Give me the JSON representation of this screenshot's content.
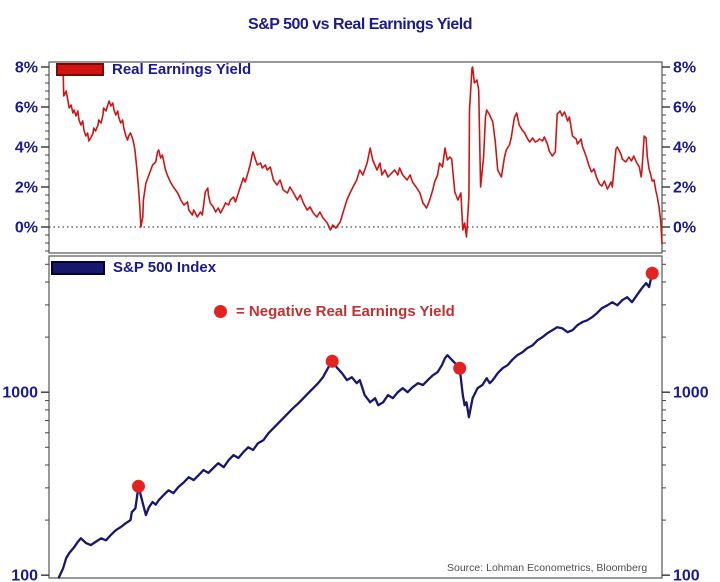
{
  "title": "S&P 500 vs Real Earnings Yield",
  "source": "Source: Lohman Econometrics, Bloomberg",
  "colors": {
    "navy_text": "#1b1b8c",
    "yield_line_red": "#cc1616",
    "sp500_line_navy": "#17176e",
    "marker_red": "#e32222",
    "annotation_red": "#c03232",
    "frame_gray": "#555555",
    "source_gray": "#4f4f4f"
  },
  "top_panel": {
    "legend": "Real Earnings Yield"
  },
  "bottom_panel": {
    "legend": "S&P 500 Index",
    "annotation": "= Negative Real Earnings Yield"
  },
  "chart_data": [
    {
      "type": "line",
      "name": "Real Earnings Yield",
      "slug": "real-earnings-yield",
      "color": "#cc1616",
      "stroke_width": 1.6,
      "scale": "linear",
      "ylim": [
        -1.3,
        8.25
      ],
      "x_note": "x is fraction of time axis; date labels are cropped out of the screenshot",
      "yticks": [
        {
          "v": 0,
          "label": "0%"
        },
        {
          "v": 2,
          "label": "2%"
        },
        {
          "v": 4,
          "label": "4%"
        },
        {
          "v": 6,
          "label": "6%"
        },
        {
          "v": 8,
          "label": "8%"
        }
      ],
      "minor_step": 0.4,
      "zero_line": true,
      "legend_position": "top-left",
      "x": [
        0.023,
        0.024,
        0.028,
        0.031,
        0.033,
        0.036,
        0.039,
        0.041,
        0.044,
        0.047,
        0.049,
        0.052,
        0.055,
        0.057,
        0.06,
        0.063,
        0.065,
        0.068,
        0.072,
        0.073,
        0.076,
        0.08,
        0.081,
        0.085,
        0.088,
        0.089,
        0.093,
        0.096,
        0.098,
        0.101,
        0.104,
        0.106,
        0.109,
        0.112,
        0.114,
        0.117,
        0.12,
        0.122,
        0.125,
        0.128,
        0.13,
        0.133,
        0.137,
        0.14,
        0.143,
        0.146,
        0.148,
        0.15,
        0.153,
        0.154,
        0.158,
        0.163,
        0.169,
        0.174,
        0.177,
        0.179,
        0.182,
        0.185,
        0.19,
        0.193,
        0.198,
        0.203,
        0.21,
        0.215,
        0.22,
        0.226,
        0.228,
        0.234,
        0.236,
        0.242,
        0.247,
        0.25,
        0.255,
        0.259,
        0.26,
        0.263,
        0.268,
        0.272,
        0.276,
        0.28,
        0.285,
        0.288,
        0.293,
        0.296,
        0.301,
        0.304,
        0.309,
        0.312,
        0.317,
        0.32,
        0.325,
        0.328,
        0.332,
        0.333,
        0.337,
        0.34,
        0.345,
        0.348,
        0.353,
        0.356,
        0.361,
        0.366,
        0.372,
        0.377,
        0.382,
        0.389,
        0.393,
        0.398,
        0.405,
        0.41,
        0.415,
        0.421,
        0.426,
        0.431,
        0.437,
        0.442,
        0.447,
        0.454,
        0.459,
        0.463,
        0.468,
        0.475,
        0.48,
        0.486,
        0.491,
        0.496,
        0.502,
        0.507,
        0.512,
        0.519,
        0.524,
        0.528,
        0.535,
        0.54,
        0.543,
        0.548,
        0.553,
        0.559,
        0.564,
        0.569,
        0.572,
        0.577,
        0.584,
        0.589,
        0.593,
        0.6,
        0.605,
        0.61,
        0.616,
        0.621,
        0.626,
        0.629,
        0.634,
        0.637,
        0.642,
        0.646,
        0.65,
        0.654,
        0.657,
        0.662,
        0.667,
        0.672,
        0.675,
        0.678,
        0.681,
        0.685,
        0.686,
        0.69,
        0.691,
        0.694,
        0.698,
        0.701,
        0.704,
        0.709,
        0.712,
        0.714,
        0.719,
        0.724,
        0.728,
        0.732,
        0.738,
        0.743,
        0.746,
        0.751,
        0.754,
        0.759,
        0.763,
        0.767,
        0.772,
        0.776,
        0.78,
        0.784,
        0.789,
        0.793,
        0.797,
        0.8,
        0.805,
        0.808,
        0.813,
        0.816,
        0.821,
        0.826,
        0.829,
        0.834,
        0.837,
        0.841,
        0.846,
        0.849,
        0.854,
        0.86,
        0.862,
        0.868,
        0.87,
        0.876,
        0.881,
        0.885,
        0.889,
        0.893,
        0.898,
        0.902,
        0.906,
        0.911,
        0.917,
        0.919,
        0.925,
        0.927,
        0.933,
        0.935,
        0.941,
        0.946,
        0.95,
        0.954,
        0.958,
        0.963,
        0.966,
        0.967,
        0.971,
        0.974,
        0.976,
        0.979,
        0.982,
        0.984,
        0.987,
        0.99,
        0.992,
        0.995,
        0.998,
        1.0
      ],
      "values": [
        8.1,
        6.55,
        6.8,
        6.3,
        5.95,
        6.1,
        5.7,
        5.85,
        5.55,
        5.8,
        5.35,
        5.1,
        5.3,
        4.85,
        4.55,
        4.7,
        4.3,
        4.45,
        4.7,
        4.95,
        4.8,
        5.1,
        5.35,
        5.2,
        5.6,
        5.95,
        5.8,
        6.1,
        6.3,
        6.05,
        6.2,
        5.85,
        5.6,
        5.8,
        5.45,
        5.2,
        5.35,
        4.95,
        4.6,
        4.35,
        4.55,
        4.7,
        4.35,
        3.9,
        3.0,
        1.95,
        1.1,
        0.0,
        0.5,
        1.35,
        2.2,
        2.6,
        3.1,
        3.25,
        3.75,
        3.85,
        3.45,
        3.6,
        2.85,
        2.6,
        2.25,
        2.0,
        1.7,
        1.35,
        1.1,
        1.25,
        0.85,
        0.6,
        0.85,
        0.5,
        0.75,
        0.6,
        1.75,
        1.95,
        1.6,
        1.2,
        1.0,
        0.75,
        0.95,
        0.7,
        1.0,
        1.2,
        1.1,
        1.35,
        1.5,
        1.25,
        1.7,
        2.0,
        2.45,
        2.25,
        2.75,
        3.1,
        3.7,
        3.75,
        3.35,
        3.1,
        3.2,
        2.95,
        3.1,
        2.85,
        3.0,
        2.35,
        2.1,
        2.35,
        1.85,
        1.7,
        2.0,
        1.75,
        1.35,
        1.6,
        1.2,
        0.85,
        1.0,
        0.7,
        0.5,
        0.75,
        0.45,
        0.2,
        -0.15,
        0.1,
        -0.05,
        0.25,
        0.75,
        1.35,
        1.7,
        2.0,
        2.35,
        2.85,
        2.6,
        3.2,
        3.95,
        3.35,
        2.85,
        3.2,
        2.6,
        2.85,
        2.5,
        2.7,
        2.85,
        2.6,
        2.95,
        2.6,
        2.35,
        2.6,
        2.25,
        1.95,
        1.7,
        1.2,
        0.95,
        1.35,
        1.85,
        2.25,
        2.6,
        3.2,
        3.0,
        3.95,
        3.35,
        3.5,
        3.4,
        1.75,
        1.35,
        1.7,
        -0.15,
        0.2,
        -0.5,
        1.5,
        5.85,
        7.95,
        8.0,
        7.2,
        7.35,
        6.85,
        2.0,
        3.5,
        5.5,
        5.85,
        5.6,
        5.25,
        4.25,
        2.85,
        2.5,
        3.5,
        3.85,
        4.1,
        4.45,
        5.45,
        5.7,
        5.1,
        4.85,
        4.7,
        4.45,
        4.25,
        4.45,
        4.25,
        4.3,
        4.4,
        4.3,
        4.5,
        4.15,
        3.8,
        3.55,
        3.75,
        5.65,
        5.8,
        5.55,
        5.75,
        5.3,
        5.5,
        4.55,
        4.4,
        4.15,
        4.4,
        4.05,
        3.55,
        3.05,
        2.75,
        2.9,
        2.5,
        2.15,
        2.05,
        2.3,
        1.9,
        2.25,
        2.0,
        3.9,
        4.0,
        3.65,
        3.4,
        3.25,
        3.5,
        3.3,
        3.55,
        3.25,
        3.0,
        2.5,
        2.75,
        4.55,
        4.45,
        3.5,
        2.9,
        2.55,
        2.3,
        2.35,
        1.8,
        1.55,
        1.05,
        0.25,
        -0.85
      ]
    },
    {
      "type": "line",
      "name": "S&P 500 Index",
      "slug": "sp500-index",
      "color": "#17176e",
      "stroke_width": 2.3,
      "scale": "log",
      "ylim": [
        96.5,
        5550
      ],
      "yticks": [
        {
          "v": 100,
          "label": "100"
        },
        {
          "v": 1000,
          "label": "1000"
        }
      ],
      "minor_ticks": [
        200,
        300,
        400,
        500,
        600,
        700,
        800,
        900,
        2000,
        3000,
        4000,
        5000
      ],
      "legend_position": "top-left",
      "markers": {
        "color": "#e32222",
        "meaning": "Negative Real Earnings Yield",
        "points": [
          [
            0.146,
            306
          ],
          [
            0.462,
            1476
          ],
          [
            0.67,
            1352
          ],
          [
            0.984,
            4467
          ]
        ]
      },
      "x": [
        0.016,
        0.023,
        0.028,
        0.033,
        0.041,
        0.047,
        0.052,
        0.06,
        0.068,
        0.076,
        0.085,
        0.093,
        0.101,
        0.109,
        0.117,
        0.125,
        0.133,
        0.135,
        0.141,
        0.146,
        0.153,
        0.158,
        0.163,
        0.169,
        0.174,
        0.179,
        0.187,
        0.195,
        0.203,
        0.211,
        0.22,
        0.228,
        0.236,
        0.244,
        0.252,
        0.26,
        0.268,
        0.276,
        0.285,
        0.293,
        0.301,
        0.309,
        0.317,
        0.325,
        0.333,
        0.341,
        0.35,
        0.358,
        0.366,
        0.374,
        0.382,
        0.39,
        0.398,
        0.407,
        0.415,
        0.423,
        0.431,
        0.439,
        0.447,
        0.455,
        0.462,
        0.47,
        0.478,
        0.486,
        0.494,
        0.502,
        0.507,
        0.515,
        0.524,
        0.532,
        0.537,
        0.545,
        0.553,
        0.561,
        0.569,
        0.577,
        0.585,
        0.593,
        0.602,
        0.61,
        0.618,
        0.626,
        0.634,
        0.641,
        0.646,
        0.65,
        0.657,
        0.662,
        0.67,
        0.675,
        0.678,
        0.681,
        0.685,
        0.691,
        0.699,
        0.707,
        0.714,
        0.719,
        0.724,
        0.732,
        0.74,
        0.748,
        0.756,
        0.764,
        0.772,
        0.78,
        0.789,
        0.797,
        0.805,
        0.813,
        0.821,
        0.829,
        0.837,
        0.846,
        0.854,
        0.862,
        0.87,
        0.878,
        0.886,
        0.894,
        0.902,
        0.911,
        0.919,
        0.927,
        0.935,
        0.943,
        0.951,
        0.959,
        0.967,
        0.974,
        0.979,
        0.984
      ],
      "values": [
        97,
        109,
        124,
        132,
        142,
        152,
        159,
        150,
        146,
        152,
        159,
        155,
        166,
        176,
        183,
        192,
        200,
        221,
        232,
        306,
        247,
        213,
        235,
        251,
        243,
        257,
        274,
        291,
        281,
        303,
        322,
        343,
        331,
        352,
        375,
        362,
        385,
        409,
        389,
        425,
        453,
        437,
        470,
        500,
        483,
        526,
        547,
        597,
        636,
        677,
        721,
        768,
        818,
        871,
        927,
        988,
        1052,
        1120,
        1208,
        1352,
        1476,
        1360,
        1270,
        1164,
        1208,
        1120,
        1164,
        964,
        881,
        927,
        849,
        881,
        964,
        927,
        1000,
        1052,
        1000,
        1064,
        1120,
        1095,
        1164,
        1236,
        1287,
        1405,
        1535,
        1593,
        1506,
        1445,
        1352,
        964,
        849,
        881,
        730,
        927,
        1052,
        1095,
        1193,
        1120,
        1164,
        1270,
        1352,
        1405,
        1506,
        1593,
        1650,
        1738,
        1806,
        1924,
        2000,
        2100,
        2183,
        2265,
        2238,
        2128,
        2183,
        2323,
        2415,
        2472,
        2570,
        2704,
        2877,
        2985,
        3105,
        2985,
        3184,
        3304,
        3105,
        3388,
        3698,
        3945,
        3758,
        4467
      ]
    }
  ]
}
